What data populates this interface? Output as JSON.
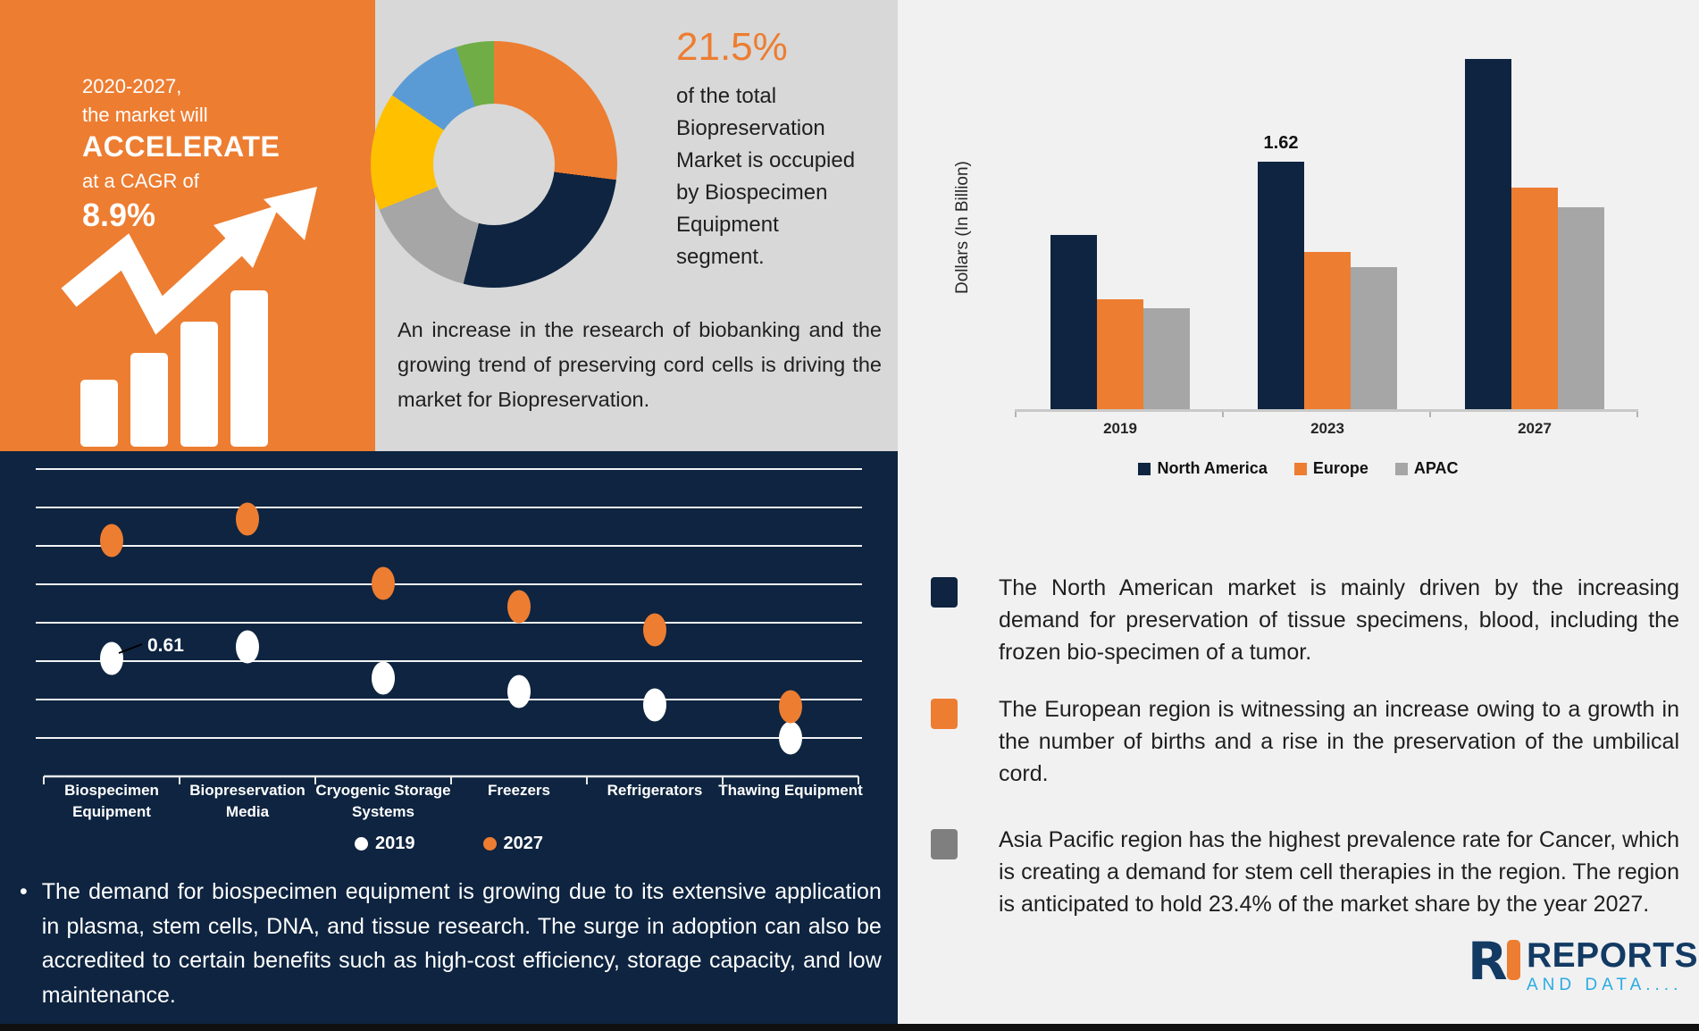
{
  "accelerate_box": {
    "line1": "2020-2027,",
    "line2": "the market will",
    "line3": "ACCELERATE",
    "line4": "at a CAGR of",
    "line5": "8.9%"
  },
  "donut_section": {
    "headline_value": "21.5%",
    "headline_lines": [
      "of the total",
      "Biopreservation",
      "Market is occupied",
      "by Biospecimen",
      "Equipment",
      "segment."
    ],
    "paragraph": "An increase in the research of biobanking and the growing trend of preserving cord cells is driving the market for Biopreservation."
  },
  "navy_bullet": {
    "marker": "•",
    "text": "The demand for biospecimen equipment is growing due to its extensive application in plasma, stem cells, DNA, and tissue research. The surge in adoption can also be accredited to certain benefits such as high-cost efficiency, storage capacity, and low maintenance."
  },
  "right_bullets": [
    {
      "swatch_color": "#0e2440",
      "text": "The North American market is mainly driven by the increasing demand for preservation of tissue specimens, blood, including the frozen bio-specimen of a tumor."
    },
    {
      "swatch_color": "#ed7d31",
      "text": "The European region is witnessing an increase owing to a growth in the number of births and a rise in the preservation of the umbilical cord."
    },
    {
      "swatch_color": "#7f7f7f",
      "text": "Asia Pacific region has the highest prevalence rate for Cancer, which is creating a demand for stem cell therapies in the region. The region is anticipated to hold 23.4% of the market share by the year 2027."
    }
  ],
  "logo": {
    "glyph": "R",
    "reports": "REPORTS",
    "and_data": "AND DATA...."
  },
  "chart_data": [
    {
      "type": "pie",
      "subtype": "donut",
      "title": "",
      "legend": "none",
      "segments": [
        {
          "color": "#ed7d31",
          "percent": 27
        },
        {
          "color": "#0e2440",
          "percent": 27
        },
        {
          "color": "#a6a6a6",
          "percent": 15
        },
        {
          "color": "#ffc000",
          "percent": 15.5
        },
        {
          "color": "#5b9bd5",
          "percent": 10.5
        },
        {
          "color": "#70ad47",
          "percent": 5
        }
      ],
      "note": "segment values not labeled in image; percents estimated from arc angles"
    },
    {
      "type": "bar",
      "title": "",
      "xlabel": "",
      "ylabel": "Dollars (In Billion)",
      "categories": [
        "2019",
        "2023",
        "2027"
      ],
      "series": [
        {
          "name": "North America",
          "color": "#0e2440",
          "values": [
            1.14,
            1.62,
            2.29
          ]
        },
        {
          "name": "Europe",
          "color": "#ed7d31",
          "values": [
            0.72,
            1.03,
            1.45
          ]
        },
        {
          "name": "APAC",
          "color": "#a6a6a6",
          "values": [
            0.66,
            0.93,
            1.32
          ]
        }
      ],
      "data_labels": [
        {
          "series_index": 0,
          "category_index": 1,
          "text": "1.62"
        }
      ],
      "ylim": [
        0,
        2.7
      ],
      "grid": false,
      "legend_position": "bottom",
      "note": "only the 1.62 value is labeled in image; other values estimated from bar heights"
    },
    {
      "type": "scatter",
      "subtype": "dot-plot",
      "title": "",
      "categories": [
        "Biospecimen Equipment",
        "Biopreservation Media",
        "Cryogenic Storage Systems",
        "Freezers",
        "Refrigerators",
        "Thawing Equipment"
      ],
      "series": [
        {
          "name": "2019",
          "color": "#ffffff",
          "values": [
            0.61,
            0.67,
            0.51,
            0.44,
            0.37,
            0.2
          ]
        },
        {
          "name": "2027",
          "color": "#ed7d31",
          "values": [
            1.22,
            1.33,
            1.0,
            0.88,
            0.76,
            0.36
          ]
        }
      ],
      "data_labels": [
        {
          "series_index": 0,
          "category_index": 0,
          "text": "0.61"
        }
      ],
      "grid": true,
      "gridline_count": 8,
      "legend_position": "bottom",
      "note": "only the 0.61 value is labeled in image; other values estimated from dot positions"
    }
  ]
}
